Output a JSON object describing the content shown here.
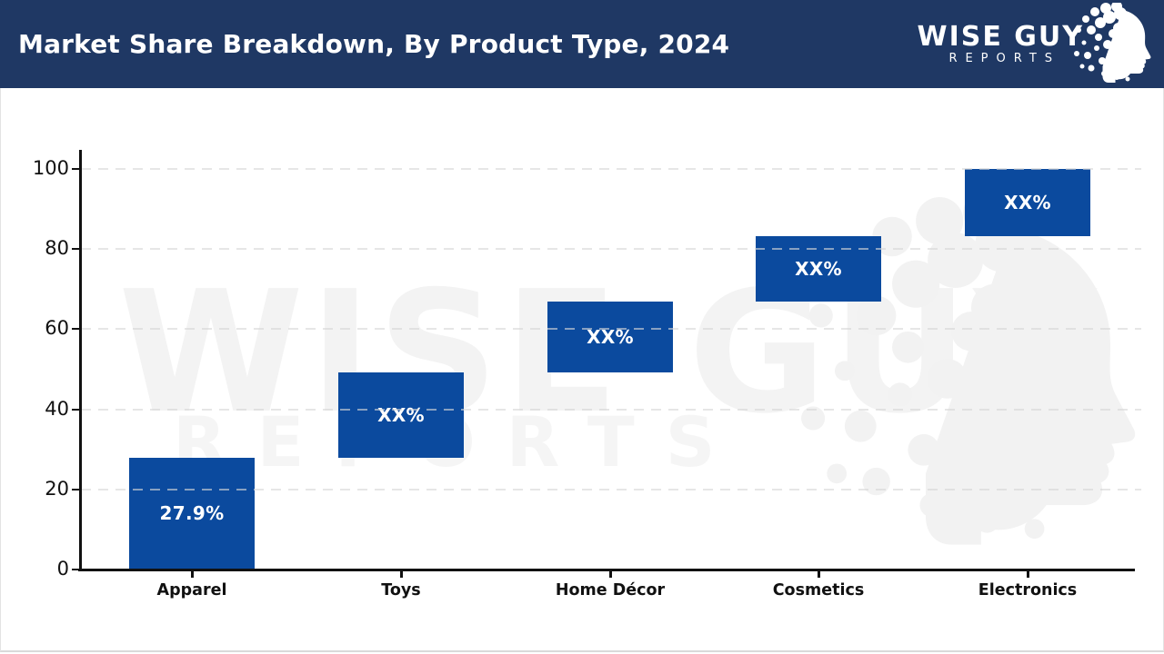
{
  "header": {
    "title": "Market Share Breakdown, By Product Type, 2024",
    "logo": {
      "line1": "WISE GUY",
      "line2": "REPORTS"
    }
  },
  "watermark": {
    "line1": "WISE GUY",
    "line2": "REPORTS"
  },
  "colors": {
    "header_bg": "#1f3864",
    "bar": "#0b4a9e",
    "axis": "#111111",
    "gridline": "#d6d6d6",
    "bar_label": "#ffffff",
    "watermark": "#f3f3f3"
  },
  "chart_data": {
    "type": "bar",
    "subtype": "waterfall",
    "title": "Market Share Breakdown, By Product Type, 2024",
    "xlabel": "",
    "ylabel": "",
    "ylim": [
      0,
      105
    ],
    "yticks": [
      0,
      20,
      40,
      60,
      80,
      100
    ],
    "grid": "horizontal-dashed",
    "legend": "none",
    "categories": [
      "Apparel",
      "Toys",
      "Home Décor",
      "Cosmetics",
      "Electronics"
    ],
    "segments": [
      {
        "category": "Apparel",
        "start": 0,
        "end": 27.9,
        "value": 27.9,
        "label": "27.9%"
      },
      {
        "category": "Toys",
        "start": 27.9,
        "end": 49.1,
        "value": 21.2,
        "label": "XX%"
      },
      {
        "category": "Home Décor",
        "start": 49.1,
        "end": 66.9,
        "value": 17.8,
        "label": "XX%"
      },
      {
        "category": "Cosmetics",
        "start": 66.9,
        "end": 83.2,
        "value": 16.3,
        "label": "XX%"
      },
      {
        "category": "Electronics",
        "start": 83.2,
        "end": 100.0,
        "value": 16.8,
        "label": "XX%"
      }
    ]
  }
}
